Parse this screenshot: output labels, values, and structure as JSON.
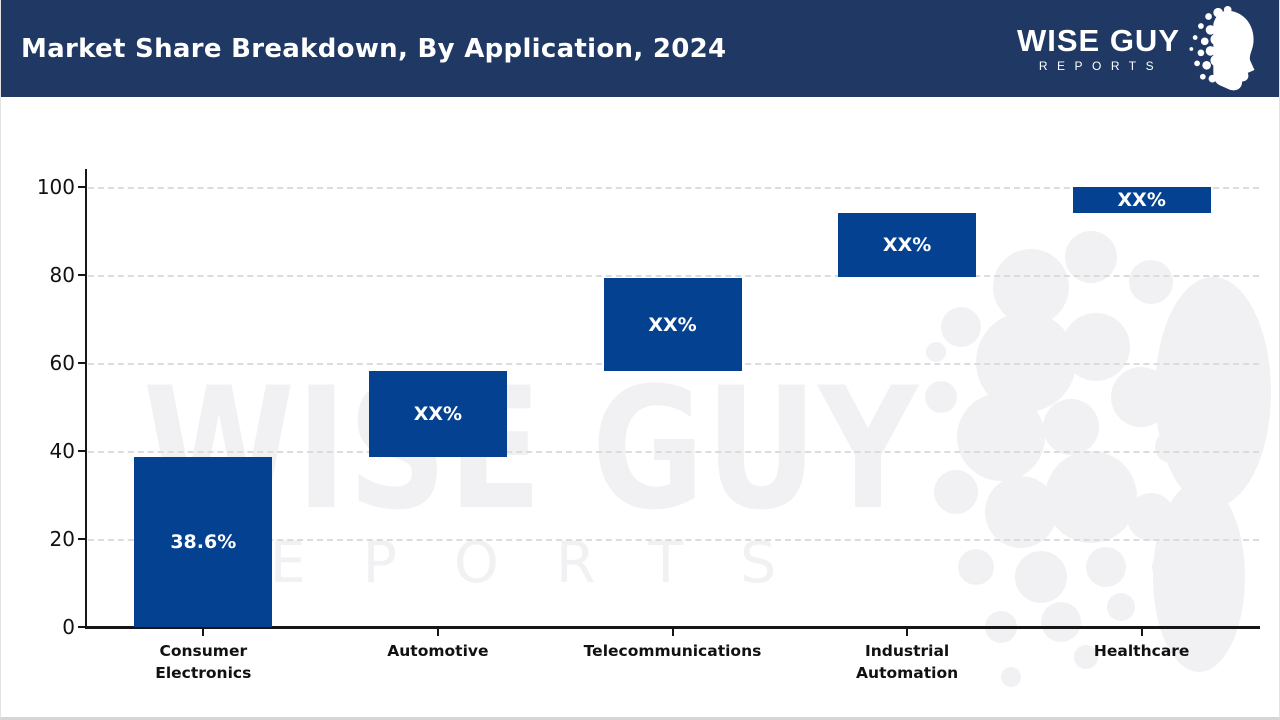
{
  "header": {
    "title": "Market Share Breakdown, By Application, 2024",
    "logo": {
      "primary": "WISE GUY",
      "secondary": "REPORTS"
    }
  },
  "watermark": {
    "primary": "WISE GUY",
    "secondary": "REPORTS"
  },
  "colors": {
    "header_bg": "#1f3864",
    "bar": "#054191",
    "bar_label": "#ffffff",
    "axis": "#161616",
    "grid": "#dcdcdc",
    "tick_label": "#111111",
    "watermark": "#f1f1f4"
  },
  "chart_data": {
    "type": "bar",
    "subtype": "waterfall",
    "title": "Market Share Breakdown, By Application, 2024",
    "categories": [
      "Consumer Electronics",
      "Automotive",
      "Telecommunications",
      "Industrial Automation",
      "Healthcare"
    ],
    "label_lines": [
      [
        "Consumer",
        "Electronics"
      ],
      [
        "Automotive"
      ],
      [
        "Telecommunications"
      ],
      [
        "Industrial",
        "Automation"
      ],
      [
        "Healthcare"
      ]
    ],
    "series": [
      {
        "name": "Market Share",
        "segments": [
          {
            "category": "Consumer Electronics",
            "start": 0,
            "end": 38.6,
            "label": "38.6%"
          },
          {
            "category": "Automotive",
            "start": 38.6,
            "end": 58.2,
            "label": "XX%"
          },
          {
            "category": "Telecommunications",
            "start": 58.2,
            "end": 79.3,
            "label": "XX%"
          },
          {
            "category": "Industrial Automation",
            "start": 79.5,
            "end": 94.2,
            "label": "XX%"
          },
          {
            "category": "Healthcare",
            "start": 94.2,
            "end": 100,
            "label": "XX%"
          }
        ]
      }
    ],
    "xlabel": "",
    "ylabel": "",
    "ylim": [
      0,
      100
    ],
    "yticks": [
      0,
      20,
      40,
      60,
      80,
      100
    ],
    "grid": "horizontal-dashed",
    "legend": "none"
  }
}
